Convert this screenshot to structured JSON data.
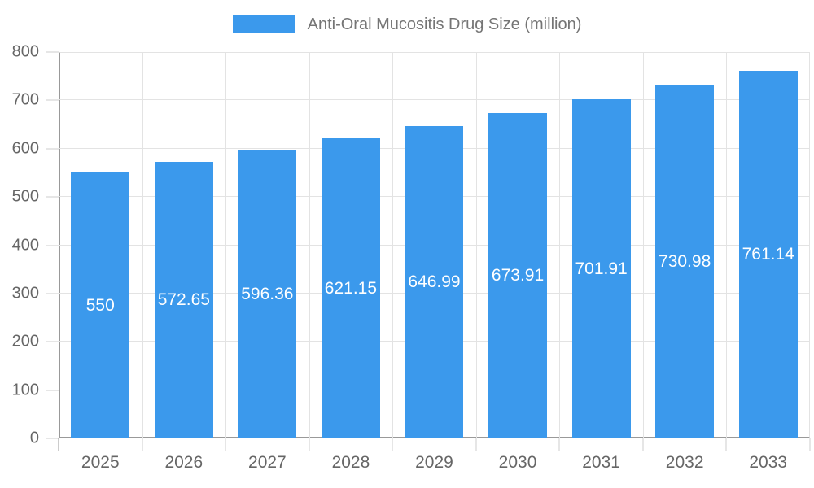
{
  "chart_data": {
    "type": "bar",
    "title": "",
    "legend": "Anti-Oral Mucositis Drug Size (million)",
    "categories": [
      "2025",
      "2026",
      "2027",
      "2028",
      "2029",
      "2030",
      "2031",
      "2032",
      "2033"
    ],
    "values": [
      550,
      572.65,
      596.36,
      621.15,
      646.99,
      673.91,
      701.91,
      730.98,
      761.14
    ],
    "value_labels": [
      "550",
      "572.65",
      "596.36",
      "621.15",
      "646.99",
      "673.91",
      "701.91",
      "730.98",
      "761.14"
    ],
    "xlabel": "",
    "ylabel": "",
    "ylim": [
      0,
      800
    ],
    "ytick_step": 100,
    "ytick_labels": [
      "0",
      "100",
      "200",
      "300",
      "400",
      "500",
      "600",
      "700",
      "800"
    ],
    "grid": true,
    "legend_position": "top-center",
    "colors": {
      "bar": "#3B99EC",
      "bar_value_label": "#FFFFFF",
      "axis_line": "#999999",
      "tick": "#CCCCCC",
      "gridline": "#E3E3E3",
      "axis_text": "#666666",
      "legend_text": "#757575",
      "background": "#FFFFFF"
    }
  }
}
